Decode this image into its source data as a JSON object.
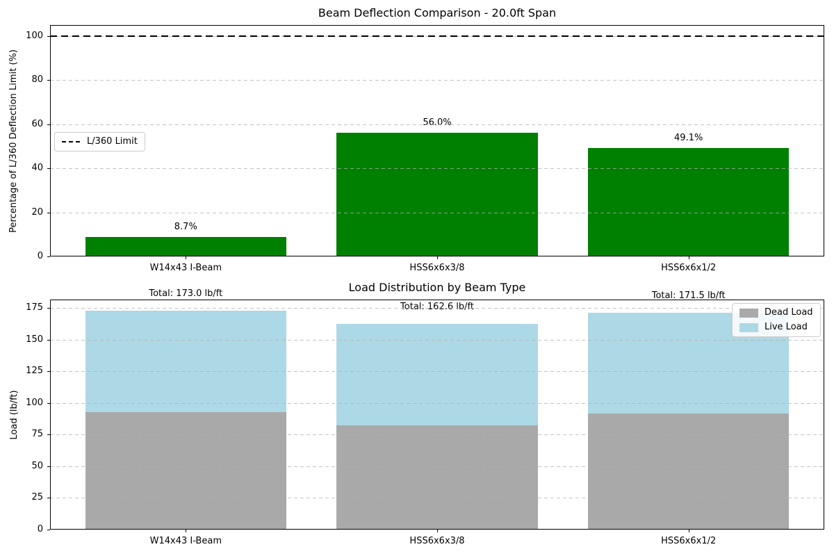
{
  "figure": {
    "background": "#ffffff",
    "text_color": "#000000",
    "grid_color": "#b0b0b0"
  },
  "chart_data": [
    {
      "type": "bar",
      "title": "Beam Deflection Comparison - 20.0ft Span",
      "ylabel": "Percentage of L/360 Deflection Limit (%)",
      "xlabel": "",
      "categories": [
        "W14x43 I-Beam",
        "HSS6x6x3/8",
        "HSS6x6x1/2"
      ],
      "values": [
        8.7,
        56.0,
        49.1
      ],
      "bar_labels": [
        "8.7%",
        "56.0%",
        "49.1%"
      ],
      "bar_color": "#008000",
      "ylim": [
        0,
        105
      ],
      "yticks": [
        0,
        20,
        40,
        60,
        80,
        100
      ],
      "grid": true,
      "ref_line": {
        "value": 100,
        "style": "dashed",
        "color": "#000000",
        "label": "L/360 Limit"
      },
      "legend": {
        "position": "center-left",
        "entries": [
          {
            "label": "L/360 Limit",
            "swatch": "dash",
            "color": "#000000"
          }
        ]
      }
    },
    {
      "type": "stacked-bar",
      "title": "Load Distribution by Beam Type",
      "ylabel": "Load (lb/ft)",
      "xlabel": "",
      "categories": [
        "W14x43 I-Beam",
        "HSS6x6x3/8",
        "HSS6x6x1/2"
      ],
      "series": [
        {
          "name": "Dead Load",
          "color": "#a9a9a9",
          "values": [
            93.0,
            82.6,
            91.5
          ]
        },
        {
          "name": "Live Load",
          "color": "#add8e6",
          "values": [
            80.0,
            80.0,
            80.0
          ]
        }
      ],
      "totals": [
        173.0,
        162.6,
        171.5
      ],
      "total_labels": [
        "Total: 173.0 lb/ft",
        "Total: 162.6 lb/ft",
        "Total: 171.5 lb/ft"
      ],
      "ylim": [
        0,
        181.7
      ],
      "yticks": [
        0,
        25,
        50,
        75,
        100,
        125,
        150,
        175
      ],
      "grid": true,
      "legend": {
        "position": "upper-right",
        "entries": [
          {
            "label": "Dead Load",
            "swatch": "rect",
            "color": "#a9a9a9"
          },
          {
            "label": "Live Load",
            "swatch": "rect",
            "color": "#add8e6"
          }
        ]
      }
    }
  ]
}
